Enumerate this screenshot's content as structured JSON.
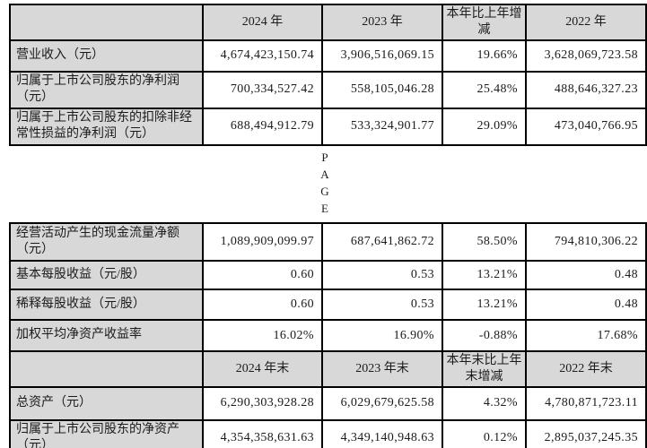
{
  "colors": {
    "header_fill": "#d8d8d8",
    "border": "#000000",
    "text": "#1b1b1b",
    "page_bg": "#ffffff"
  },
  "page_break": {
    "lines": [
      "P",
      "A",
      "G",
      "E"
    ]
  },
  "table_annual": {
    "col_headers": [
      "",
      "2024 年",
      "2023 年",
      "本年比上年增减",
      "2022 年"
    ],
    "rows": [
      {
        "label": "营业收入（元）",
        "values": [
          "4,674,423,150.74",
          "3,906,516,069.15",
          "19.66%",
          "3,628,069,723.58"
        ]
      },
      {
        "label": "归属于上市公司股东的净利润（元）",
        "values": [
          "700,334,527.42",
          "558,105,046.28",
          "25.48%",
          "488,646,327.23"
        ]
      },
      {
        "label": "归属于上市公司股东的扣除非经常性损益的净利润（元）",
        "values": [
          "688,494,912.79",
          "533,324,901.77",
          "29.09%",
          "473,040,766.95"
        ]
      }
    ]
  },
  "table_metrics": {
    "rows_top": [
      {
        "label": "经营活动产生的现金流量净额（元）",
        "values": [
          "1,089,909,099.97",
          "687,641,862.72",
          "58.50%",
          "794,810,306.22"
        ]
      },
      {
        "label": "基本每股收益（元/股）",
        "values": [
          "0.60",
          "0.53",
          "13.21%",
          "0.48"
        ]
      },
      {
        "label": "稀释每股收益（元/股）",
        "values": [
          "0.60",
          "0.53",
          "13.21%",
          "0.48"
        ]
      },
      {
        "label": "加权平均净资产收益率",
        "values": [
          "16.02%",
          "16.90%",
          "-0.88%",
          "17.68%"
        ]
      }
    ],
    "col_headers": [
      "",
      "2024 年末",
      "2023 年末",
      "本年末比上年末增减",
      "2022 年末"
    ],
    "rows_bottom": [
      {
        "label": "总资产（元）",
        "values": [
          "6,290,303,928.28",
          "6,029,679,625.58",
          "4.32%",
          "4,780,871,723.11"
        ]
      },
      {
        "label": "归属于上市公司股东的净资产（元）",
        "values": [
          "4,354,358,631.63",
          "4,349,140,948.63",
          "0.12%",
          "2,895,037,245.35"
        ]
      }
    ]
  }
}
